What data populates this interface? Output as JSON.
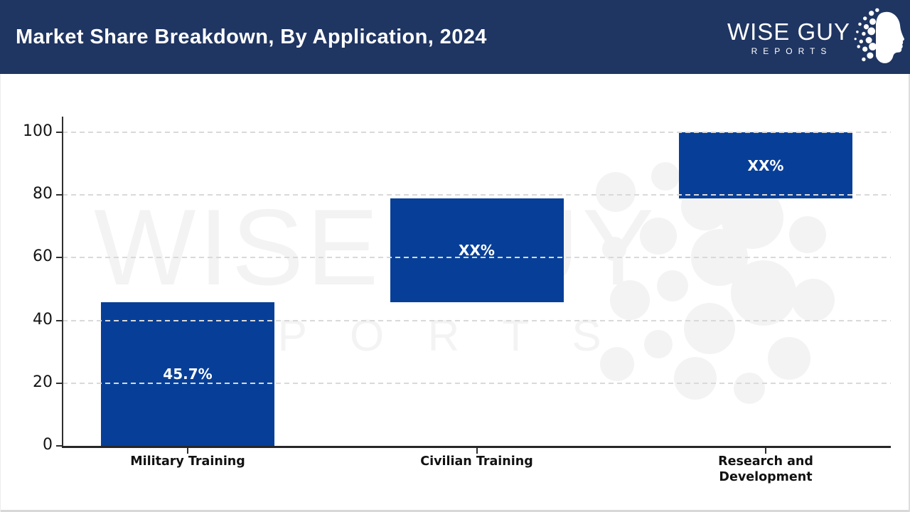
{
  "header": {
    "title": "Market Share Breakdown, By Application, 2024",
    "background_color": "#1f3562",
    "title_color": "#ffffff"
  },
  "logo": {
    "line1": "WISE GUY",
    "line2": "REPORTS"
  },
  "watermark": {
    "line1": "WISE GUY",
    "line2": "R E P O R T S"
  },
  "chart_data": {
    "type": "bar",
    "subtype": "waterfall",
    "title": "Market Share Breakdown, By Application, 2024",
    "categories": [
      "Military Training",
      "Civilian Training",
      "Research and Development"
    ],
    "segments": [
      {
        "category": "Military Training",
        "start": 0,
        "end": 45.7,
        "label": "45.7%"
      },
      {
        "category": "Civilian Training",
        "start": 45.7,
        "end": 78.9,
        "label": "XX%"
      },
      {
        "category": "Research and Development",
        "start": 78.9,
        "end": 100,
        "label": "XX%"
      }
    ],
    "ylim": [
      0,
      105
    ],
    "yticks": [
      0,
      20,
      40,
      60,
      80,
      100
    ],
    "grid": "dashed horizontal gridlines, drawn over bars",
    "legend": "none",
    "bar_color": "#073f98",
    "value_label_color": "#ffffff"
  }
}
